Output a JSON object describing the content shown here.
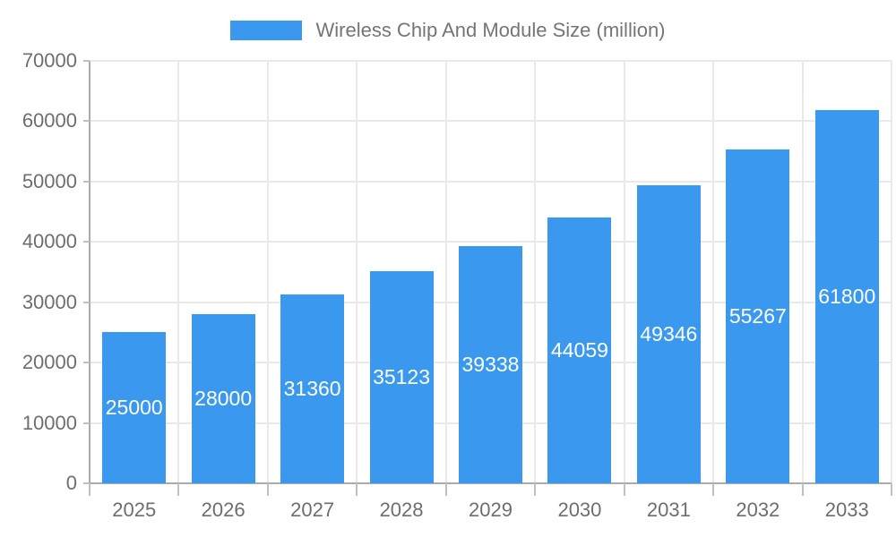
{
  "legend": {
    "label": "Wireless Chip And Module Size (million)"
  },
  "chart_data": {
    "type": "bar",
    "title": "Wireless Chip And Module Size (million)",
    "series_name": "Wireless Chip And Module Size (million)",
    "categories": [
      "2025",
      "2026",
      "2027",
      "2028",
      "2029",
      "2030",
      "2031",
      "2032",
      "2033"
    ],
    "values": [
      25000,
      28000,
      31360,
      35123,
      39338,
      44059,
      49346,
      55267,
      61800
    ],
    "bar_labels": [
      "25000",
      "28000",
      "31360",
      "35123",
      "39338",
      "44059",
      "49346",
      "55267",
      "61800"
    ],
    "xlabel": "",
    "ylabel": "",
    "ylim": [
      0,
      70000
    ],
    "ytick_step": 10000,
    "ytick_labels": [
      "0",
      "10000",
      "20000",
      "30000",
      "40000",
      "50000",
      "60000",
      "70000"
    ],
    "grid": true,
    "legend_position": "top-center",
    "colors": {
      "bar": "#3a99ee",
      "bar_label": "#ffffff",
      "grid_line": "#e9e9e9",
      "axis_line": "#ababab",
      "tick_mark": "#c0c0c0",
      "tick_label": "#6e6e6e",
      "legend_text": "#757575",
      "background": "#ffffff"
    }
  }
}
